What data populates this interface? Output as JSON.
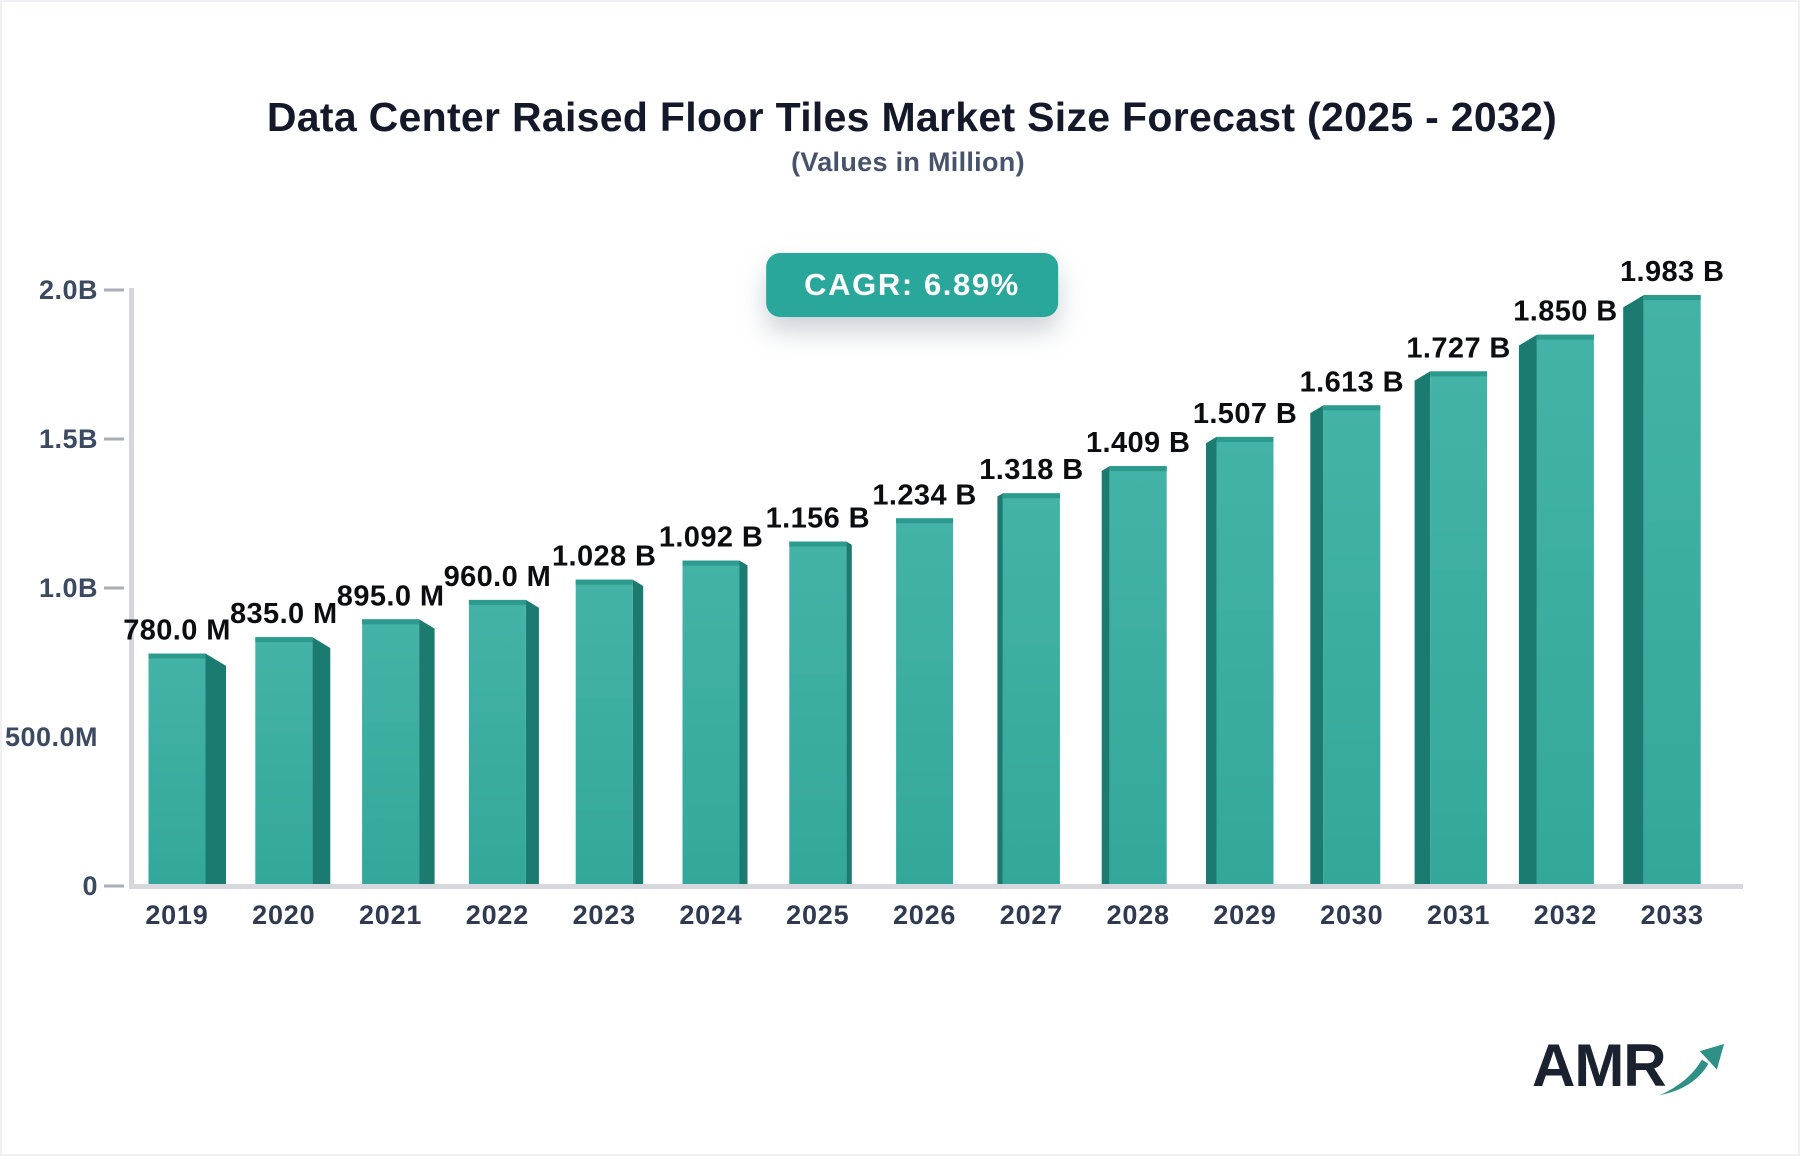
{
  "page": {
    "background": "#ffffff",
    "border_color": "#eef0f3"
  },
  "header": {
    "title": "Data Center Raised Floor Tiles Market Size Forecast (2025 - 2032)",
    "subtitle": "(Values in Million)"
  },
  "cagr_badge": {
    "label": "CAGR: 6.89%",
    "background": "#2aa79b",
    "text_color": "#ffffff"
  },
  "logo": {
    "text": "AMR",
    "text_color": "#1a2230",
    "arrow_color": "#2e9087"
  },
  "chart_data": {
    "type": "bar",
    "title": "Data Center Raised Floor Tiles Market Size Forecast (2025 - 2032)",
    "subtitle": "(Values in Million)",
    "cagr": "6.89%",
    "categories": [
      "2019",
      "2020",
      "2021",
      "2022",
      "2023",
      "2024",
      "2025",
      "2026",
      "2027",
      "2028",
      "2029",
      "2030",
      "2031",
      "2032",
      "2033"
    ],
    "values_in_millions": [
      780,
      835,
      895,
      960,
      1028,
      1092,
      1156,
      1234,
      1318,
      1409,
      1507,
      1613,
      1727,
      1850,
      1983
    ],
    "bar_labels": [
      "780.0 M",
      "835.0 M",
      "895.0 M",
      "960.0 M",
      "1.028 B",
      "1.092 B",
      "1.156 B",
      "1.234 B",
      "1.318 B",
      "1.409 B",
      "1.507 B",
      "1.613 B",
      "1.727 B",
      "1.850 B",
      "1.983 B"
    ],
    "ylim": [
      0,
      2000
    ],
    "yticks": [
      {
        "value": 2000,
        "label": "2.0B",
        "dash": true
      },
      {
        "value": 1500,
        "label": "1.5B",
        "dash": true
      },
      {
        "value": 1000,
        "label": "1.0B",
        "dash": true
      },
      {
        "value": 500,
        "label": "500.0M",
        "dash": false
      },
      {
        "value": 0,
        "label": "0",
        "dash": true
      }
    ],
    "grid": false,
    "legend": false,
    "bar_3d_effect": "perspective toward center column (2026)",
    "colors": {
      "bar_front_top": "#44b3a7",
      "bar_front_bottom": "#33a89a",
      "bar_side": "#1c7b70",
      "bar_top_edge": "#2d9a8e",
      "axis_line": "#d4d6dd",
      "baseline": "#d6d8dd",
      "tick_dash": "#a9aeb6",
      "tick_text": "#3c4a61",
      "year_text": "#2f3a50",
      "value_text": "#0b0d10"
    }
  }
}
